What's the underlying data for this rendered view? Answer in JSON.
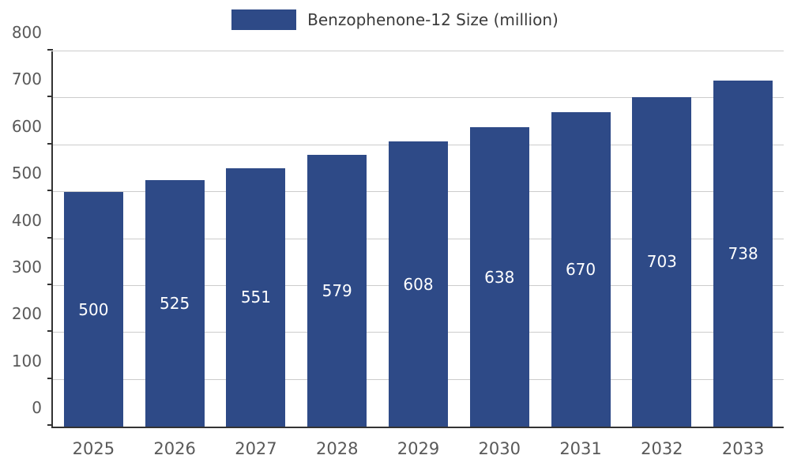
{
  "legend": {
    "label": "Benzophenone-12 Size (million)"
  },
  "chart_data": {
    "type": "bar",
    "title": "Benzophenone-12 Size (million)",
    "categories": [
      "2025",
      "2026",
      "2027",
      "2028",
      "2029",
      "2030",
      "2031",
      "2032",
      "2033"
    ],
    "values": [
      500,
      525,
      551,
      579,
      608,
      638,
      670,
      703,
      738
    ],
    "xlabel": "",
    "ylabel": "",
    "ylim": [
      0,
      800
    ],
    "yticks": [
      0,
      100,
      200,
      300,
      400,
      500,
      600,
      700,
      800
    ],
    "grid": true,
    "legend_position": "top-center",
    "colors": {
      "bar": "#2e4a87",
      "value_label": "#ffffff",
      "tick_label": "#595959",
      "gridline": "#cccccc",
      "spine": "#333333"
    }
  }
}
